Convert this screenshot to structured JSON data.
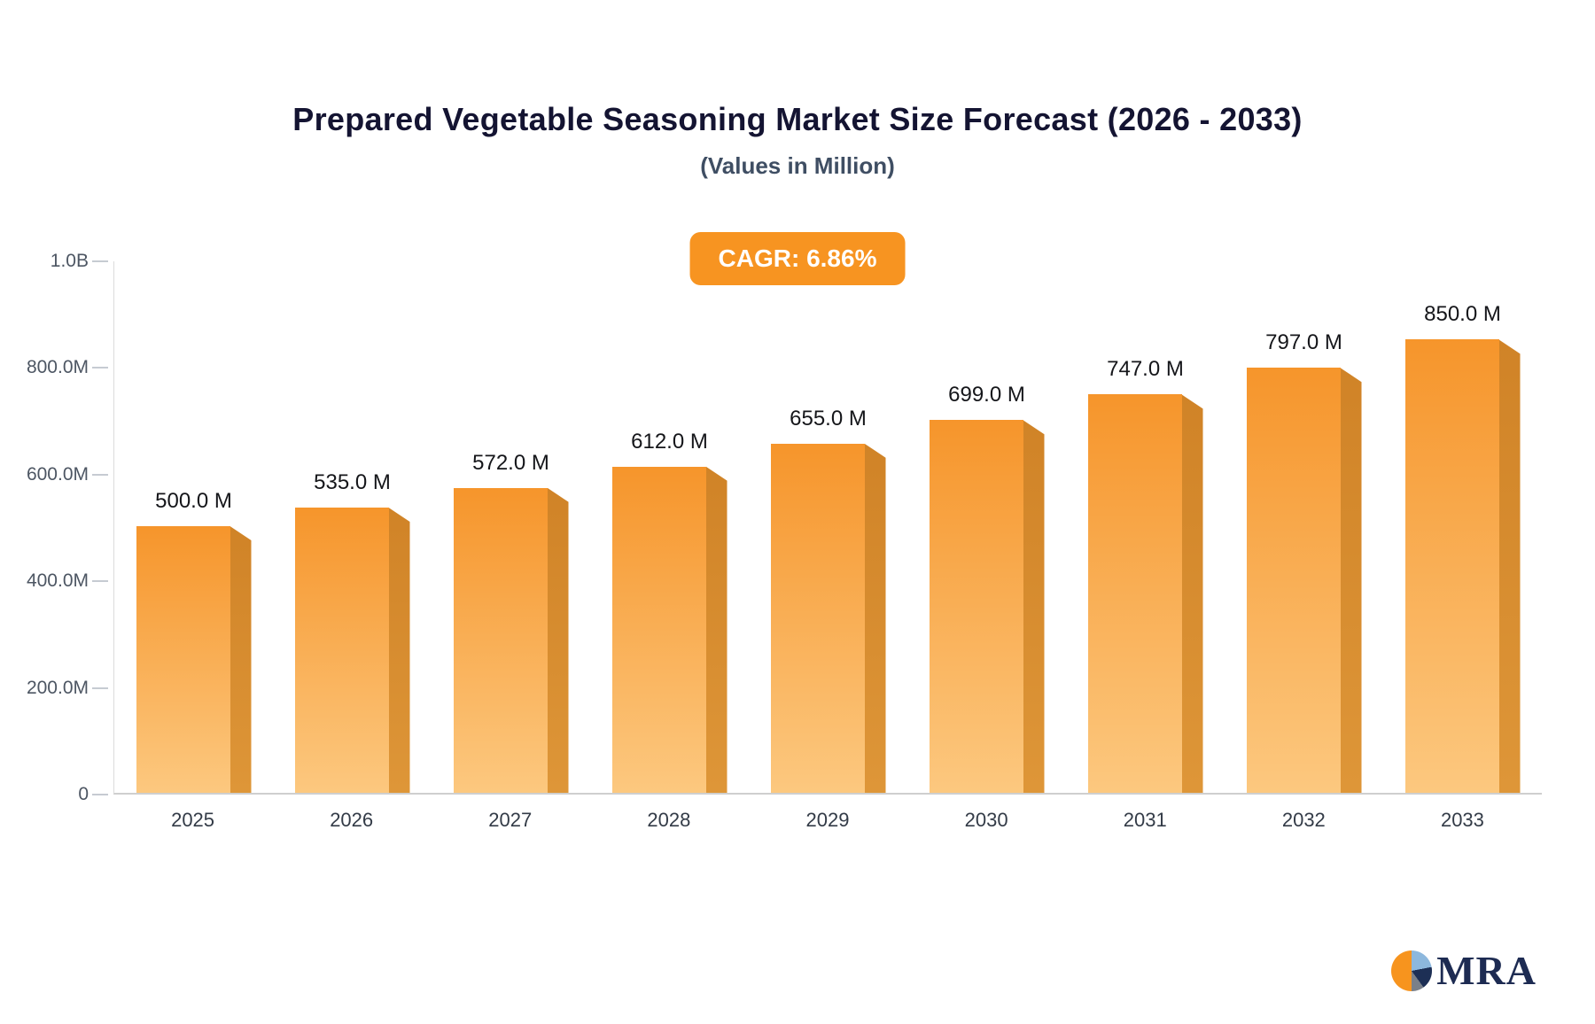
{
  "chart_data": {
    "type": "bar",
    "title": "Prepared Vegetable Seasoning Market Size Forecast (2026 - 2033)",
    "subtitle": "(Values in Million)",
    "cagr_label": "CAGR: 6.86%",
    "categories": [
      "2025",
      "2026",
      "2027",
      "2028",
      "2029",
      "2030",
      "2031",
      "2032",
      "2033"
    ],
    "values": [
      500,
      535,
      572,
      612,
      655,
      699,
      747,
      797,
      850
    ],
    "value_labels": [
      "500.0 M",
      "535.0 M",
      "572.0 M",
      "612.0 M",
      "655.0 M",
      "699.0 M",
      "747.0 M",
      "797.0 M",
      "850.0 M"
    ],
    "unit": "Million",
    "xlabel": "",
    "ylabel": "",
    "ylim": [
      0,
      1000
    ],
    "grid": false,
    "legend": "none",
    "y_ticks": [
      {
        "value": 1000,
        "label": "1.0B"
      },
      {
        "value": 800,
        "label": "800.0M"
      },
      {
        "value": 600,
        "label": "600.0M"
      },
      {
        "value": 400,
        "label": "400.0M"
      },
      {
        "value": 200,
        "label": "200.0M"
      },
      {
        "value": 0,
        "label": "0"
      }
    ],
    "colors": {
      "bar_top": "#f6952b",
      "bar_bottom": "#fcc87f",
      "bar_side": "#d08327",
      "badge_bg": "#f79421",
      "badge_text": "#ffffff",
      "title_color": "#141432"
    }
  },
  "logo": {
    "text": "MRA"
  }
}
